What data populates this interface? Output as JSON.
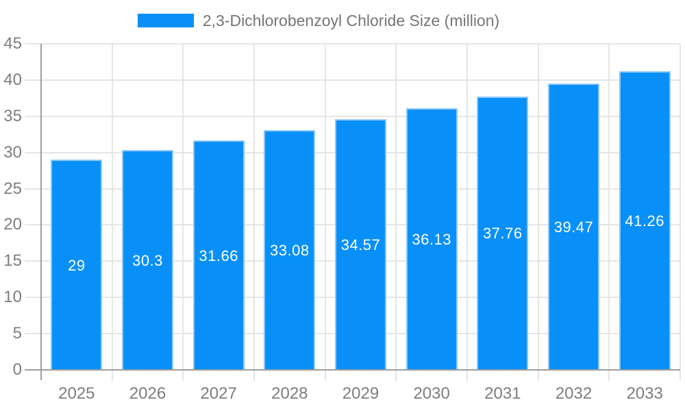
{
  "chart_data": {
    "type": "bar",
    "title": "2,3-Dichlorobenzoyl Chloride Size (million)",
    "categories": [
      "2025",
      "2026",
      "2027",
      "2028",
      "2029",
      "2030",
      "2031",
      "2032",
      "2033"
    ],
    "values": [
      29,
      30.3,
      31.66,
      33.08,
      34.57,
      36.13,
      37.76,
      39.47,
      41.26
    ],
    "value_labels": [
      "29",
      "30.3",
      "31.66",
      "33.08",
      "34.57",
      "36.13",
      "37.76",
      "39.47",
      "41.26"
    ],
    "xlabel": "",
    "ylabel": "",
    "ylim": [
      0,
      45
    ],
    "ytick_step": 5,
    "ytick_labels": [
      "0",
      "5",
      "10",
      "15",
      "20",
      "25",
      "30",
      "35",
      "40",
      "45"
    ],
    "grid": true,
    "legend_position": "top",
    "colors": {
      "bar_fill": "#0990f8",
      "bar_border": "#8ec7fa",
      "grid_line": "#e5e5e5",
      "axis_line": "#9e9e9e",
      "tick_label": "#7d7d7d",
      "legend_text": "#757575",
      "bar_label": "#ffffff",
      "background": "#ffffff"
    }
  }
}
